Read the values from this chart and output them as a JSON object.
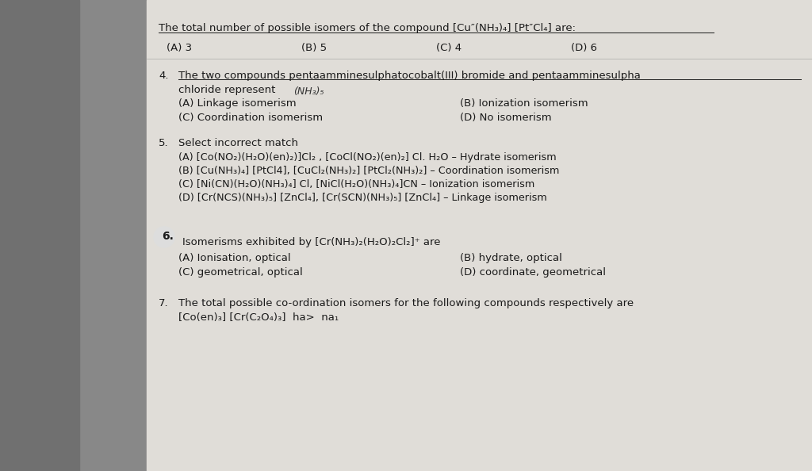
{
  "background_color": "#d0d0d0",
  "content_bg": "#e8e8e8",
  "left_panel_color": "#c0c0c0",
  "title_question": "The total number of possible isomers of the compound [Cu″(NH₃)₄] [Pt″Cl₄] are:",
  "q3_options": [
    "(A) 3",
    "(B) 5",
    "(C) 4",
    "(D) 6"
  ],
  "q4_number": "4.",
  "q4_line1": "The two compounds pentaamminesulphatocobalt(III) bromide and pentaamminesulpha",
  "q4_line2": "chloride represent",
  "q4_options_left": [
    "(A) Linkage isomerism",
    "(C) Coordination isomerism"
  ],
  "q4_options_right": [
    "(B) Ionization isomerism",
    "(D) No isomerism"
  ],
  "q5_number": "5.",
  "q5_title": "Select incorrect match",
  "q5_options": [
    "(A) [Co(NO₂)(H₂O)(en)₂)]Cl₂ , [CoCl(NO₂)(en)₂] Cl. H₂O – Hydrate isomerism",
    "(B) [Cu(NH₃)₄] [PtCl4], [CuCl₂(NH₃)₂] [PtCl₂(NH₃)₂] – Coordination isomerism",
    "(C) [Ni(CN)(H₂O)(NH₃)₄] Cl, [NiCl(H₂O)(NH₃)₄]CN – Ionization isomerism",
    "(D) [Cr(NCS)(NH₃)₅] [ZnCl₄], [Cr(SCN)(NH₃)₅] [ZnCl₄] – Linkage isomerism"
  ],
  "q6_number": "6.",
  "q6_title": "Isomerisms exhibited by [Cr(NH₃)₂(H₂O)₂Cl₂]⁺ are",
  "q6_options_left": [
    "(A) Ionisation, optical",
    "(C) geometrical, optical"
  ],
  "q6_options_right": [
    "(B) hydrate, optical",
    "(D) coordinate, geometrical"
  ],
  "q7_number": "7.",
  "q7_text": "The total possible co-ordination isomers for the following compounds respectively are",
  "q7_bottom": "[Co(en)₃] [Cr(C₂O₄)₃]  ha>  na₁",
  "handwriting_note": "(NH₃)₅"
}
